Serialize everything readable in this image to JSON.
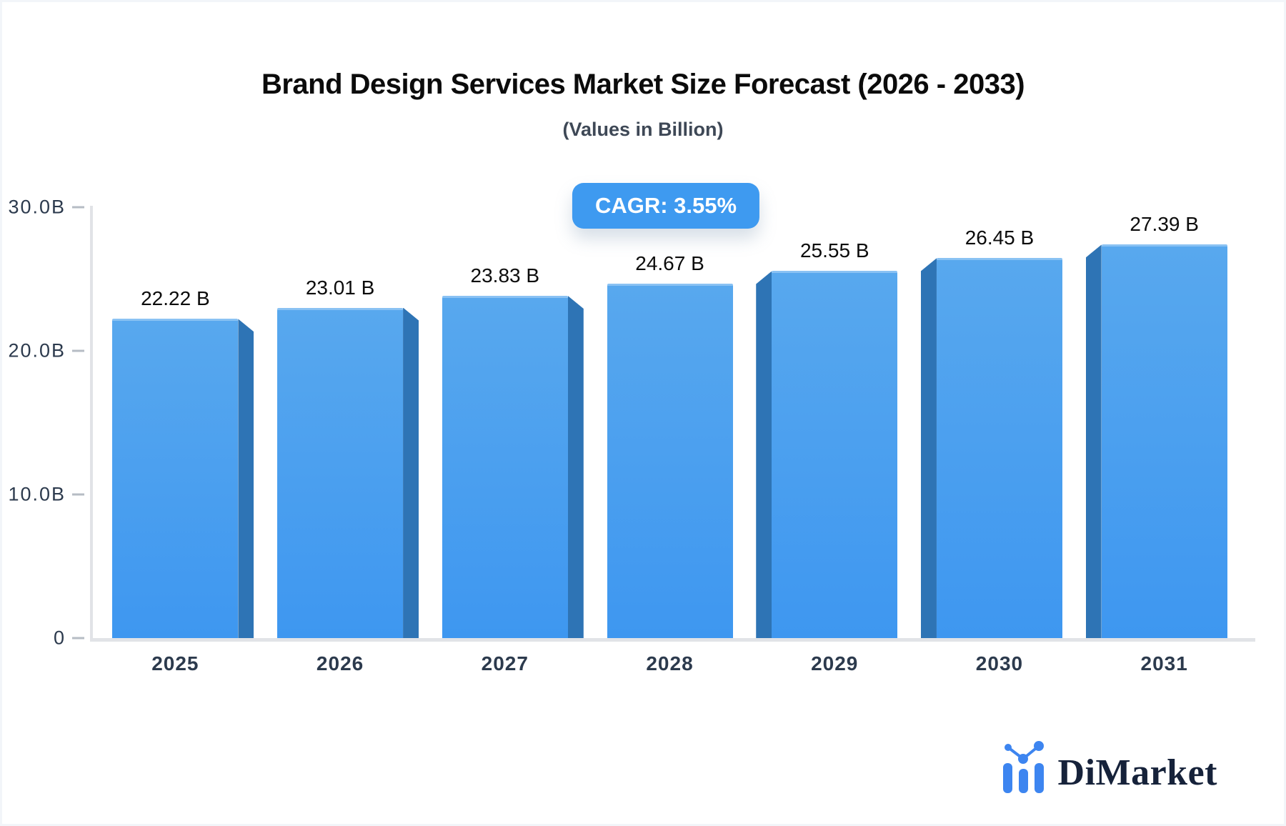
{
  "chart_data": {
    "type": "bar",
    "title": "Brand Design Services Market Size Forecast (2026 - 2033)",
    "subtitle": "(Values in Billion)",
    "annotation": "CAGR: 3.55%",
    "categories": [
      "2025",
      "2026",
      "2027",
      "2028",
      "2029",
      "2030",
      "2031"
    ],
    "values": [
      22.22,
      23.01,
      23.83,
      24.67,
      25.55,
      26.45,
      27.39
    ],
    "value_labels": [
      "22.22 B",
      "23.01 B",
      "23.83 B",
      "24.67 B",
      "25.55 B",
      "26.45 B",
      "27.39 B"
    ],
    "yticks": {
      "labels": [
        "30.0B",
        "20.0B",
        "10.0B",
        "0"
      ],
      "values": [
        30,
        20,
        10,
        0
      ]
    },
    "ylim": [
      0,
      30
    ],
    "grid": false,
    "legend": "none",
    "colors": {
      "bar_face_top": "#58a8ee",
      "bar_face_bottom": "#3e97f0",
      "bar_side": "#2e74b5",
      "badge_bg": "#3e9af0",
      "badge_text": "#ffffff",
      "axis_line": "#e1e3e7",
      "tick_mark": "#b6bcc4",
      "axis_label": "#2c3a4d",
      "value_label": "#0c0c0c"
    }
  },
  "branding": {
    "logo_text": "DiMarket",
    "logo_icon": "bar-chart-logo-icon",
    "logo_text_color": "#16223a",
    "logo_icon_color": "#3d85f0"
  }
}
